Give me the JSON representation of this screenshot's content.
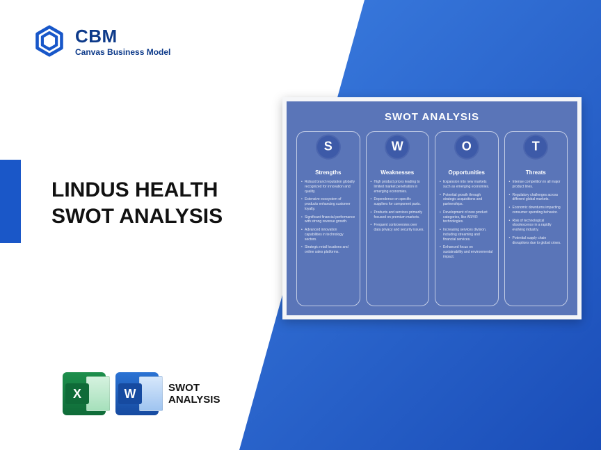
{
  "brand": {
    "abbr": "CBM",
    "full": "Canvas Business Model",
    "icon_color": "#1857c9"
  },
  "accent_color": "#1a57c8",
  "title_line1": "LINDUS HEALTH",
  "title_line2": "SWOT ANALYSIS",
  "footer": {
    "excel_letter": "X",
    "word_letter": "W",
    "label_line1": "SWOT",
    "label_line2": "ANALYSIS"
  },
  "card": {
    "bg_color": "#5a75b8",
    "frame_color": "#f5f6f8",
    "title": "SWOT ANALYSIS",
    "circle_color": "#3d5aa8",
    "columns": [
      {
        "letter": "S",
        "heading": "Strengths",
        "items": [
          "Robust brand reputation globally recognized for innovation and quality.",
          "Extensive ecosystem of products enhancing customer loyalty.",
          "Significant financial performance with strong revenue growth.",
          "Advanced innovation capabilities in technology sectors.",
          "Strategic retail locations and online sales platforms."
        ]
      },
      {
        "letter": "W",
        "heading": "Weaknesses",
        "items": [
          "High product prices leading to limited market penetration in emerging economies.",
          "Dependence on specific suppliers for component parts.",
          "Products and services primarily focused on premium markets.",
          "Frequent controversies over data privacy and security issues."
        ]
      },
      {
        "letter": "O",
        "heading": "Opportunities",
        "items": [
          "Expansion into new markets such as emerging economies.",
          "Potential growth through strategic acquisitions and partnerships.",
          "Development of new product categories, like AR/VR technologies.",
          "Increasing services division, including streaming and financial services.",
          "Enhanced focus on sustainability and environmental impact."
        ]
      },
      {
        "letter": "T",
        "heading": "Threats",
        "items": [
          "Intense competition in all major product lines.",
          "Regulatory challenges across different global markets.",
          "Economic downturns impacting consumer spending behavior.",
          "Risk of technological obsolescence in a rapidly evolving industry.",
          "Potential supply chain disruptions due to global crises."
        ]
      }
    ]
  }
}
